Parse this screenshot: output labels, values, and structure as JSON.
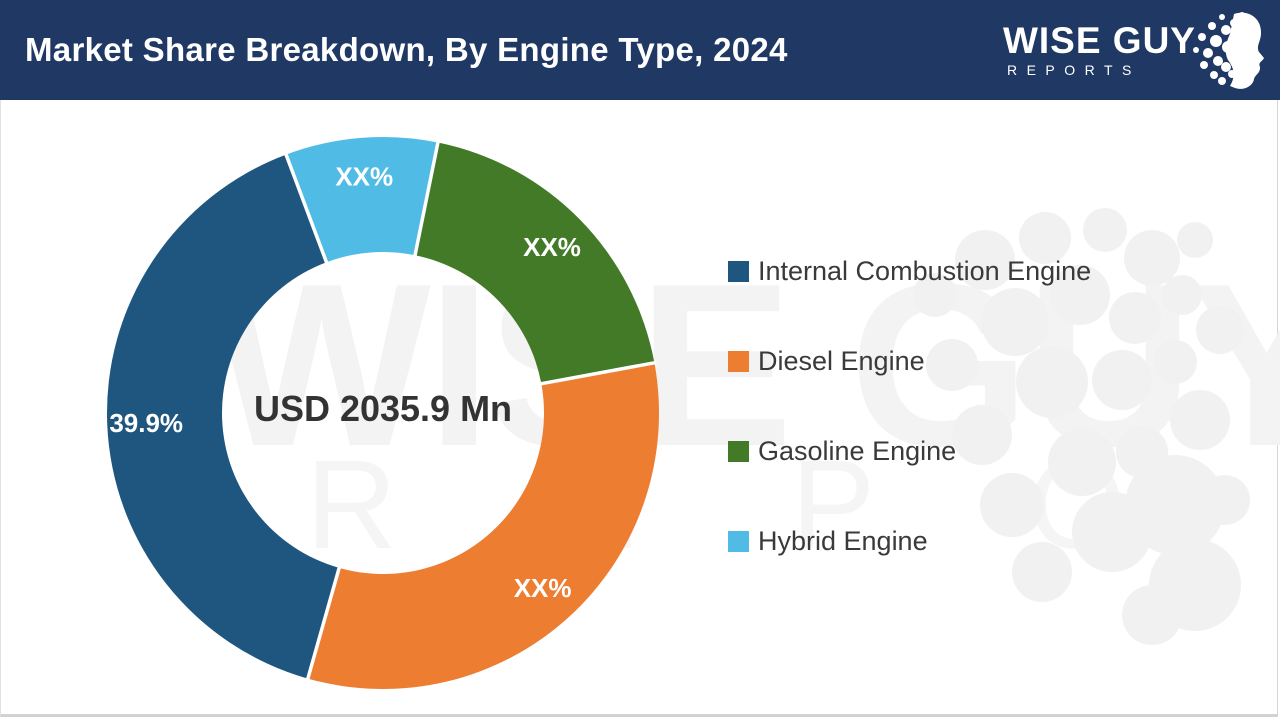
{
  "header": {
    "title": "Market Share Breakdown, By Engine Type, 2024",
    "logo": {
      "line1": "WISE GUY",
      "line2": "REPORTS"
    }
  },
  "watermark": {
    "line1": "WISE GUY",
    "line2": "R E P O R T S"
  },
  "chart_data": {
    "type": "pie",
    "subtype": "donut",
    "title": "Market Share Breakdown, By Engine Type, 2024",
    "center_label": "USD 2035.9 Mn",
    "start_angle_deg": 195.8,
    "outer_radius": 276,
    "inner_radius": 161,
    "label_radius": 237,
    "gap_color": "#ffffff",
    "slices": [
      {
        "name": "Internal Combustion Engine",
        "pct": 39.9,
        "label": "39.9%",
        "color": "#1F567F"
      },
      {
        "name": "Hybrid Engine",
        "pct": 8.9,
        "label": "XX%",
        "color": "#50BCE6"
      },
      {
        "name": "Gasoline Engine",
        "pct": 18.9,
        "label": "XX%",
        "color": "#427A28"
      },
      {
        "name": "Diesel Engine",
        "pct": 32.3,
        "label": "XX%",
        "color": "#ED7D31"
      }
    ],
    "legend": [
      {
        "label": "Internal Combustion Engine",
        "color": "#1F567F"
      },
      {
        "label": "Diesel Engine",
        "color": "#ED7D31"
      },
      {
        "label": "Gasoline Engine",
        "color": "#427A28"
      },
      {
        "label": "Hybrid Engine",
        "color": "#50BCE6"
      }
    ],
    "legend_position": "right",
    "colors": {
      "header_bg": "#1F3864",
      "center_text": "#333333",
      "legend_text": "#3a3a3a",
      "watermark": "#f3f3f3"
    }
  }
}
